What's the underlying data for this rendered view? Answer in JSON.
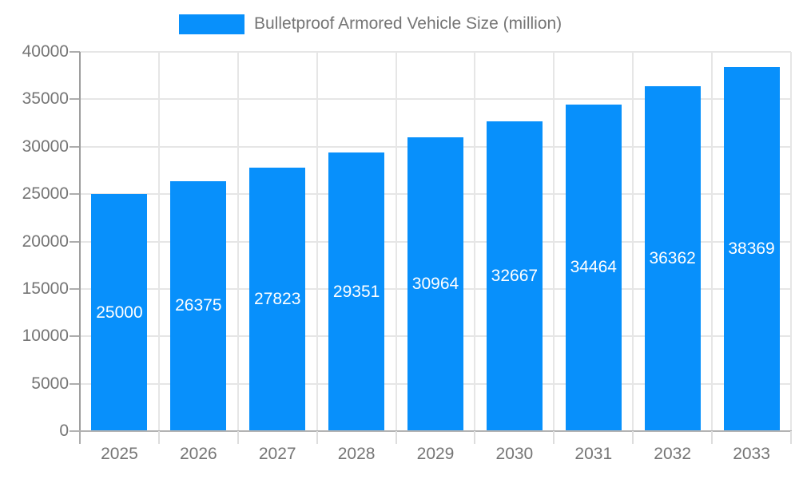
{
  "legend": {
    "label": "Bulletproof Armored Vehicle Size (million)"
  },
  "colors": {
    "bar": "#0890FB",
    "grid_line": "#E6E6E6",
    "light_tick": "#DDDDDD",
    "axis_tick": "#ADADAD",
    "y_axis_line": "#9E9E9E",
    "x_axis_line": "#B3B3B3",
    "axis_label_text": "#757575",
    "legend_text": "#757575",
    "bar_value_text": "#FFFFFF",
    "background": "#FFFFFF"
  },
  "chart_data": {
    "type": "bar",
    "title": "Bulletproof Armored Vehicle Size (million)",
    "categories": [
      "2025",
      "2026",
      "2027",
      "2028",
      "2029",
      "2030",
      "2031",
      "2032",
      "2033"
    ],
    "series": [
      {
        "name": "Bulletproof Armored Vehicle Size (million)",
        "values": [
          25000,
          26375,
          27823,
          29351,
          30964,
          32667,
          34464,
          36362,
          38369
        ]
      }
    ],
    "xlabel": "",
    "ylabel": "",
    "ylim": [
      0,
      40000
    ],
    "yticks": [
      0,
      5000,
      10000,
      15000,
      20000,
      25000,
      30000,
      35000,
      40000
    ],
    "grid": true,
    "legend_position": "top",
    "value_labels": "inside-center"
  }
}
